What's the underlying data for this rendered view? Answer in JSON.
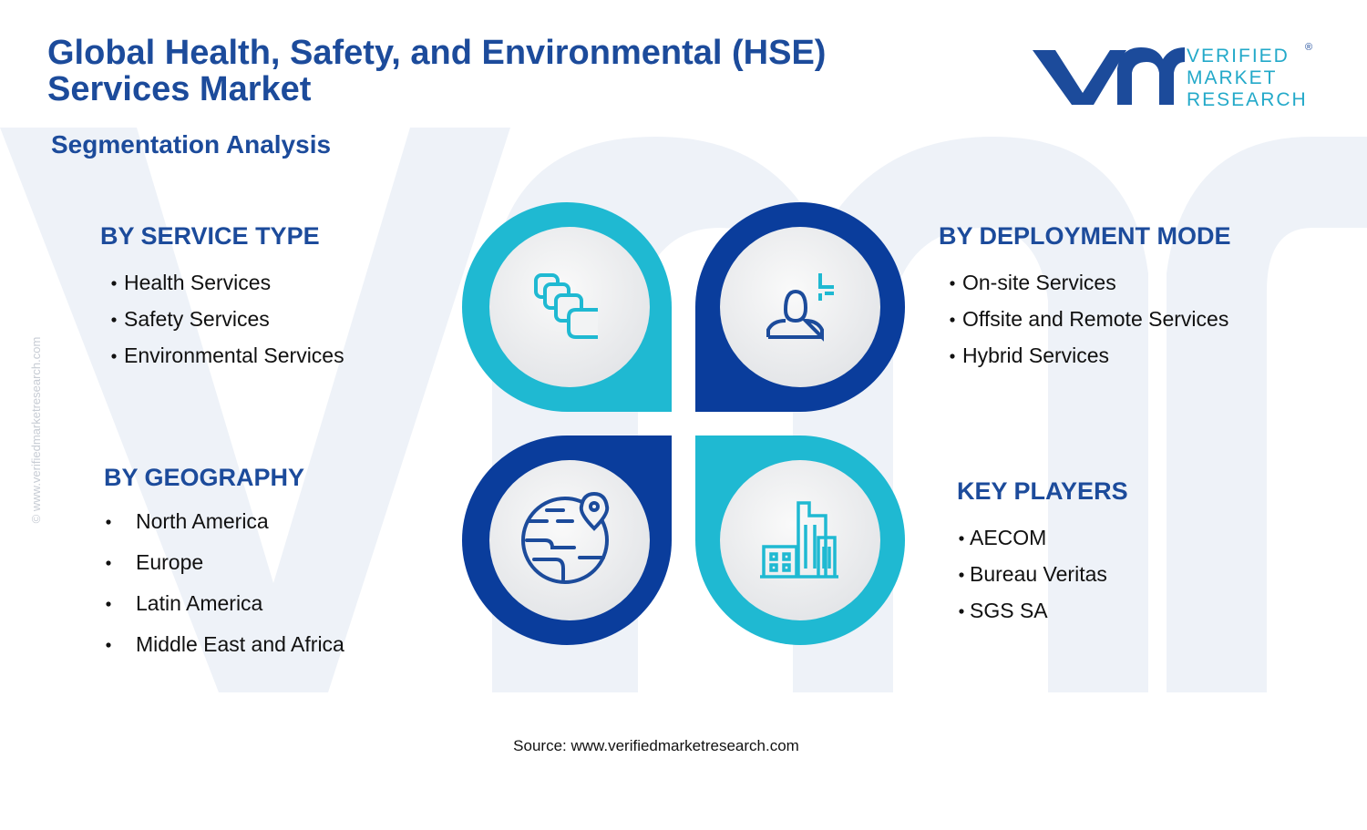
{
  "header": {
    "title_lines": [
      "Global Health, Safety, and Environmental (HSE)",
      "Services Market"
    ],
    "subtitle": "Segmentation Analysis"
  },
  "logo": {
    "lines": [
      "VERIFIED",
      "MARKET",
      "RESEARCH"
    ],
    "registered": "®"
  },
  "watermark": "© www.verifiedmarketresearch.com",
  "sections": [
    {
      "heading": "BY SERVICE TYPE",
      "items": [
        "Health Services",
        "Safety Services",
        "Environmental Services"
      ]
    },
    {
      "heading": "BY DEPLOYMENT MODE",
      "items": [
        "On-site Services",
        "Offsite and Remote Services",
        "Hybrid Services"
      ]
    },
    {
      "heading": "BY GEOGRAPHY",
      "items": [
        "North America",
        "Europe",
        "Latin America",
        "Middle East and Africa"
      ]
    },
    {
      "heading": "KEY PLAYERS",
      "items": [
        "AECOM",
        "Bureau Veritas",
        "SGS SA"
      ]
    }
  ],
  "source": "Source: www.verifiedmarketresearch.com"
}
